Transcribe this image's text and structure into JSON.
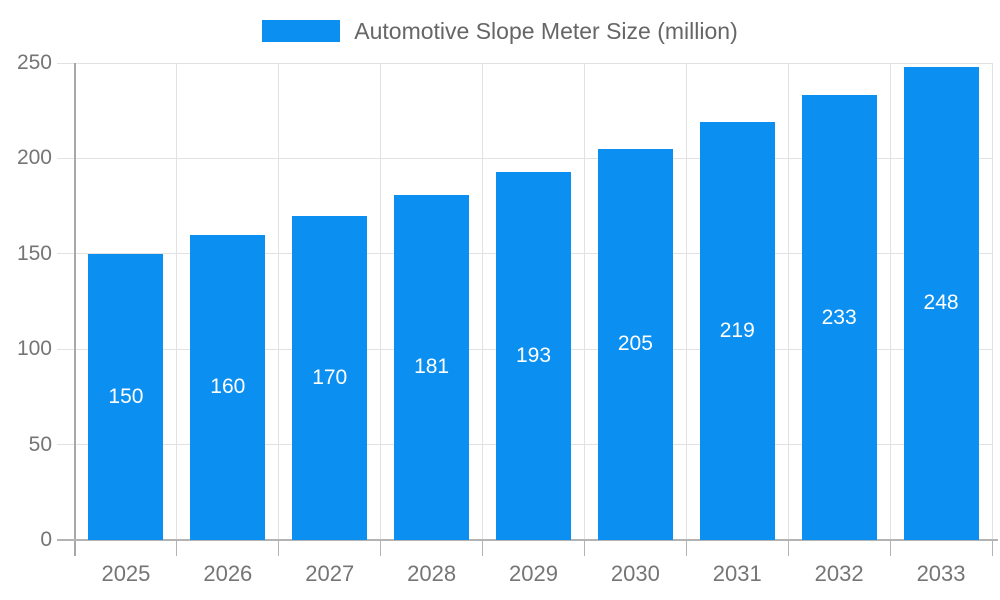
{
  "legend": {
    "title": "Automotive Slope Meter Size (million)"
  },
  "chart_data": {
    "type": "bar",
    "title": "Automotive Slope Meter Size (million)",
    "categories": [
      "2025",
      "2026",
      "2027",
      "2028",
      "2029",
      "2030",
      "2031",
      "2032",
      "2033"
    ],
    "values": [
      150,
      160,
      170,
      181,
      193,
      205,
      219,
      233,
      248
    ],
    "xlabel": "",
    "ylabel": "",
    "ylim": [
      0,
      250
    ],
    "yticks": [
      0,
      50,
      100,
      150,
      200,
      250
    ],
    "grid": true,
    "legend_position": "top",
    "bar_labels_inside": true
  },
  "colors": {
    "bar": "#0b90f2",
    "grid": "#e2e2e2",
    "axis": "#a8a8a8",
    "baseline": "#b3b3b3",
    "tick_text": "#757575",
    "title_text": "#666666",
    "bar_label": "#ffffff",
    "background": "#ffffff"
  }
}
